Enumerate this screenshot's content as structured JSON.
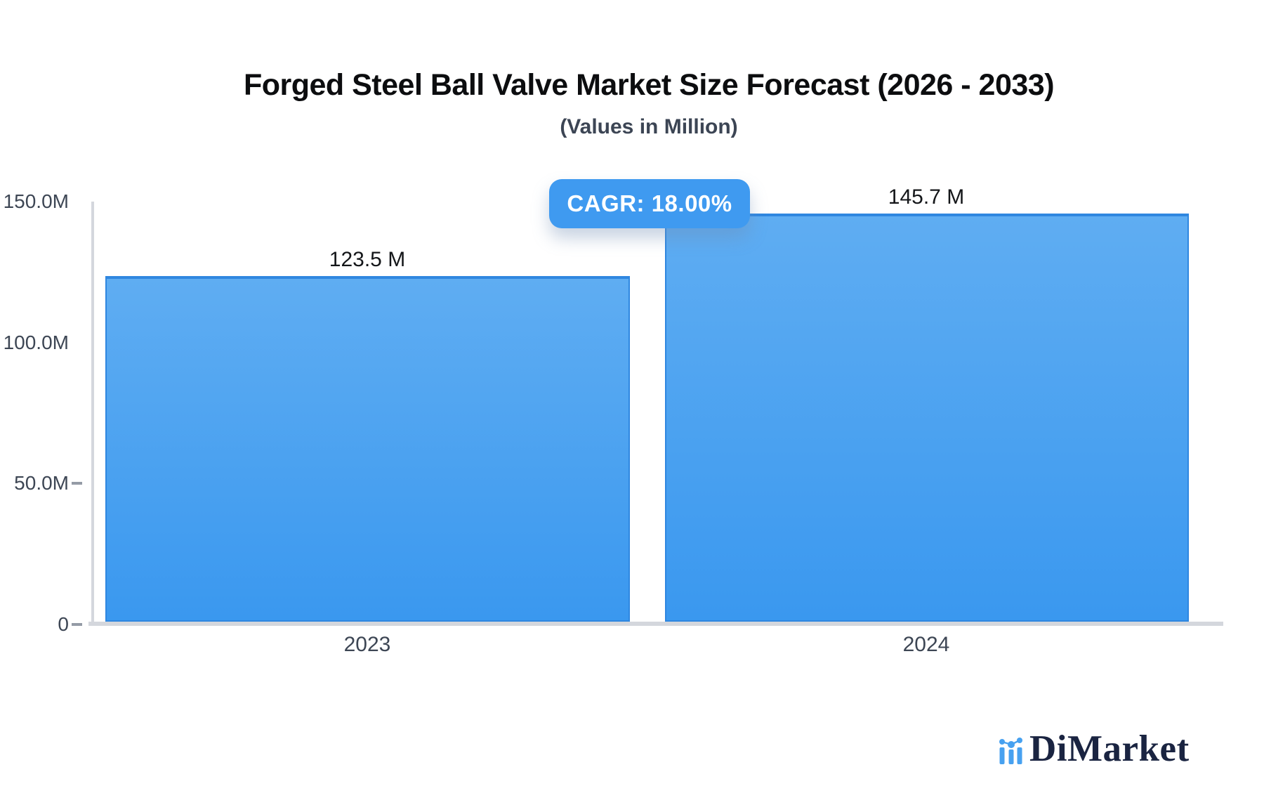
{
  "header": {
    "title": "Forged Steel Ball Valve Market Size Forecast (2026 - 2033)",
    "subtitle": "(Values in Million)"
  },
  "badge": {
    "label": "CAGR: 18.00%",
    "color": "#3f9af0"
  },
  "brand": {
    "name": "DiMarket",
    "icon": "logo-bars-icon",
    "text_color": "#1a2441",
    "icon_color": "#47a1f0"
  },
  "colors": {
    "bar_gradient_top": "#5fadf2",
    "bar_gradient_bottom": "#3a98ef",
    "bar_border": "#2f87e0",
    "axis_line": "#d4d7dd",
    "axis_text": "#3d4654",
    "title_text": "#0c0d0f"
  },
  "chart_data": {
    "type": "bar",
    "categories": [
      "2023",
      "2024"
    ],
    "values": [
      123.5,
      145.7
    ],
    "value_labels": [
      "123.5 M",
      "145.7 M"
    ],
    "title": "Forged Steel Ball Valve Market Size Forecast (2026 - 2033)",
    "subtitle": "(Values in Million)",
    "annotation": "CAGR: 18.00%",
    "xlabel": "",
    "ylabel": "",
    "ylim": [
      0,
      150
    ],
    "yticks": [
      {
        "value": 150,
        "label": "150.0M"
      },
      {
        "value": 100,
        "label": "100.0M"
      },
      {
        "value": 50,
        "label": "50.0M"
      },
      {
        "value": 0,
        "label": "0"
      }
    ],
    "grid": false,
    "legend": false,
    "bar_color_gradient": [
      "#5fadf2",
      "#3a98ef"
    ]
  }
}
